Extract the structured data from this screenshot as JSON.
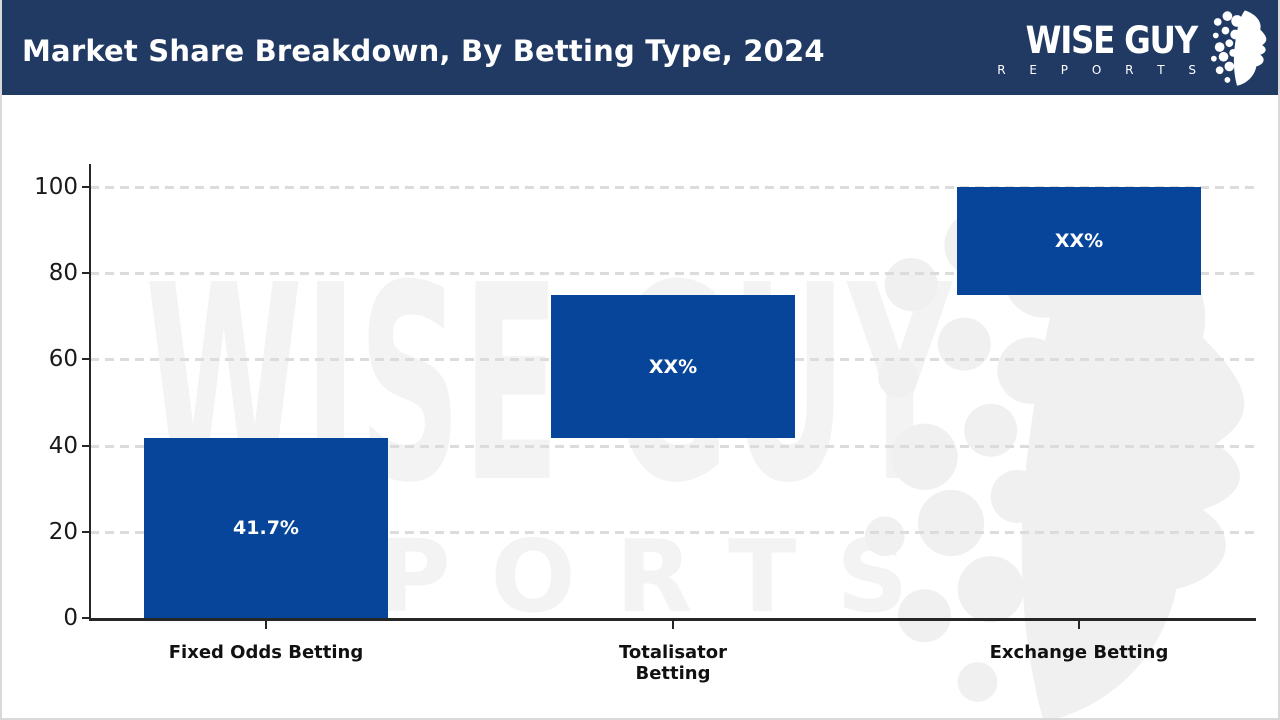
{
  "header": {
    "title": "Market Share Breakdown, By Betting Type, 2024",
    "bg_color": "#213a64",
    "logo": {
      "line1": "WISE GUY",
      "line2": "R E P O R T S"
    }
  },
  "watermark": {
    "line1": "WISE GUY",
    "line2": "REPORTS"
  },
  "chart_data": {
    "type": "bar",
    "subtype": "waterfall",
    "title": "Market Share Breakdown, By Betting Type, 2024",
    "categories": [
      "Fixed Odds Betting",
      "Totalisator\nBetting",
      "Exchange Betting"
    ],
    "series": [
      {
        "name": "Market Share (%)",
        "segments": [
          {
            "category": "Fixed Odds Betting",
            "start": 0,
            "end": 41.7,
            "label": "41.7%"
          },
          {
            "category": "Totalisator Betting",
            "start": 41.7,
            "end": 75,
            "label": "XX%"
          },
          {
            "category": "Exchange Betting",
            "start": 75,
            "end": 100,
            "label": "XX%"
          }
        ]
      }
    ],
    "xlabel": "",
    "ylabel": "",
    "ylim": [
      0,
      100
    ],
    "yticks": [
      0,
      20,
      40,
      60,
      80,
      100
    ],
    "grid": "horizontal-dashed",
    "legend": "none",
    "bar_color": "#07459a",
    "gridline_color": "#dcdcdc",
    "axis_color": "#262626"
  }
}
